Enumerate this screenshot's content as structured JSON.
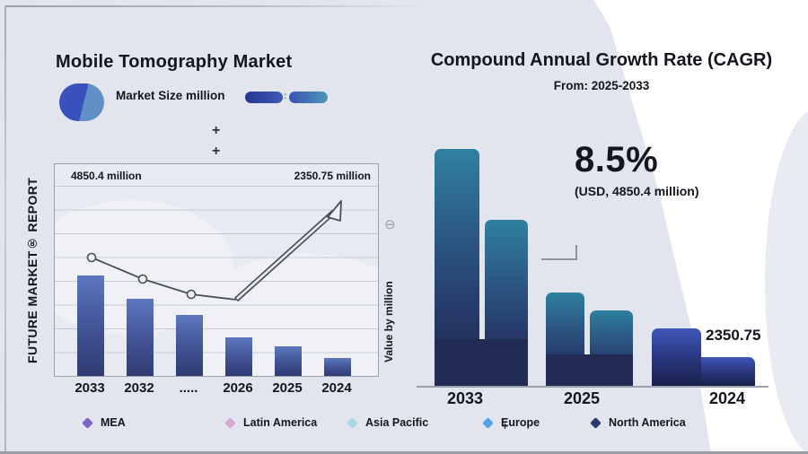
{
  "header": {
    "left_title": "Mobile Tomography Market",
    "series_label": "Market Size million",
    "ratio_separator": ":",
    "right_title": "Compound Annual Growth Rate (CAGR)",
    "right_subtitle": "From: 2025-2033"
  },
  "icons": {
    "plus": "+",
    "circle_minus": "⊖"
  },
  "left_chart": {
    "watermark": "FUTURE MARKET® REPORT",
    "ylabel": "Value by million"
  },
  "chart_data": [
    {
      "id": "market-size-by-year",
      "type": "bar",
      "title": "Mobile Tomography Market",
      "series_name": "Market Size million",
      "categories": [
        "2033",
        "2032",
        ".....",
        "2026",
        "2025",
        "2024"
      ],
      "bar_heights_relative": [
        1.0,
        0.77,
        0.61,
        0.385,
        0.295,
        0.18
      ],
      "annotations": {
        "top_left": "4850.4 million",
        "top_right": "2350.75 million"
      },
      "labeled_values": {
        "2033_million": 4850.4,
        "2024_million": 2350.75
      },
      "ylabel": "Value by million",
      "trend": "line with circle markers declines from 2033 to 2026, then outlined arrow rises to upper right",
      "grid": true,
      "legend_position": "bottom"
    },
    {
      "id": "cagr-2025-2033",
      "type": "bar",
      "title": "Compound Annual Growth Rate (CAGR)",
      "subtitle": "From: 2025-2033",
      "cagr_value": "8.5%",
      "cagr_note": "(USD, 4850.4 million)",
      "categories": [
        "2033",
        "2025",
        "2024"
      ],
      "group_heights_relative": [
        [
          1.0,
          0.7
        ],
        [
          0.394,
          0.318
        ],
        [
          0.242,
          0.121
        ]
      ],
      "value_label": "2350.75",
      "value_label_category": "2024"
    }
  ],
  "legend": {
    "items": [
      {
        "label": "MEA",
        "color": "#7e64c6"
      },
      {
        "label": "Latin America",
        "color": "#d8a8d4"
      },
      {
        "label": "Asia Pacific",
        "color": "#a6d8e6"
      },
      {
        "label": "Europe",
        "color": "#4fa2e8"
      },
      {
        "label": "North America",
        "color": "#2d3a6d"
      }
    ]
  },
  "colors": {
    "panel_bg": "#e2e5ee",
    "left_bar_top": "#5d78c0",
    "left_bar_bottom": "#2e3a72",
    "right_bar_teal_top": "#2f809f",
    "right_bar_teal_bottom": "#1f2a52",
    "right_bar_blue_top": "#4058b8",
    "right_bar_blue_bottom": "#19204a"
  }
}
